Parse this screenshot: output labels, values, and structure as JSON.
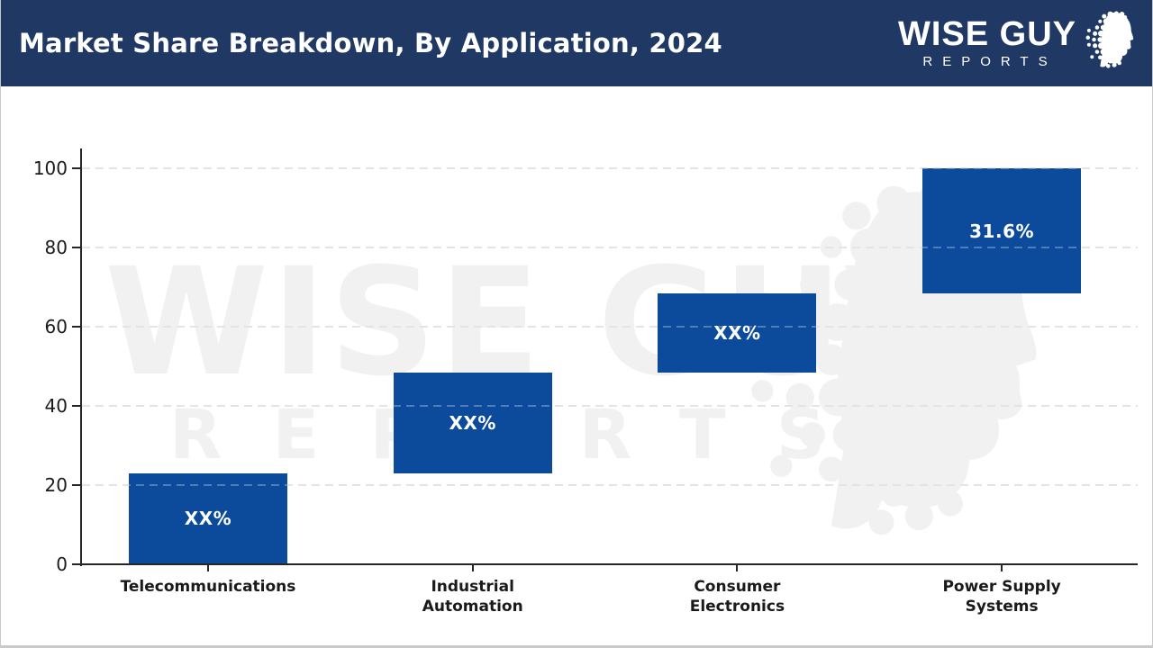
{
  "header": {
    "title": "Market Share Breakdown, By Application, 2024",
    "logo": {
      "text_top": "WISE GUY",
      "text_bottom": "REPORTS"
    }
  },
  "watermark": {
    "text_top": "WISE GUY",
    "text_bottom": "REPORTS"
  },
  "colors": {
    "header_bg": "#1f3864",
    "header_text": "#ffffff",
    "bar": "#0c4a9c",
    "bar_label": "#ffffff",
    "grid": "#d9d9d9",
    "axis": "#262626",
    "tick_text": "#1a1a1a",
    "watermark": "#f1f1f2",
    "page_border": "#c9c9c9"
  },
  "chart_data": {
    "type": "bar",
    "variant": "floating stacked segments (waterfall-style market share)",
    "title": "Market Share Breakdown, By Application, 2024",
    "xlabel": "",
    "ylabel": "",
    "categories": [
      "Telecommunications",
      "Industrial\nAutomation",
      "Consumer\nElectronics",
      "Power Supply\nSystems"
    ],
    "bars": [
      {
        "category": "Telecommunications",
        "start": 0,
        "end": 23,
        "share_pct": 23,
        "label": "XX%"
      },
      {
        "category": "Industrial Automation",
        "start": 23,
        "end": 48.4,
        "share_pct": 25.4,
        "label": "XX%"
      },
      {
        "category": "Consumer Electronics",
        "start": 48.4,
        "end": 68.4,
        "share_pct": 20,
        "label": "XX%"
      },
      {
        "category": "Power Supply Systems",
        "start": 68.4,
        "end": 100,
        "share_pct": 31.6,
        "label": "31.6%"
      }
    ],
    "yticks": [
      0,
      20,
      40,
      60,
      80,
      100
    ],
    "ylim": [
      0,
      105
    ],
    "grid": "dashed horizontal",
    "legend": false
  }
}
